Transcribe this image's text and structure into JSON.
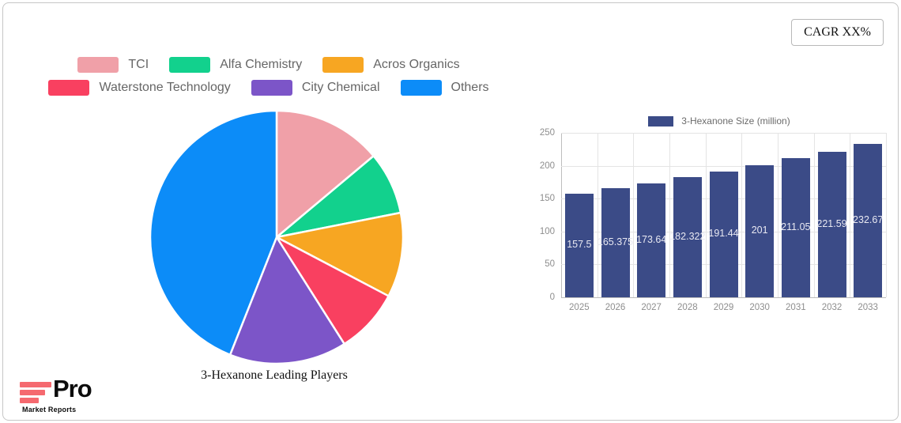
{
  "cagr_badge": {
    "label": "CAGR XX%"
  },
  "logo": {
    "text": "Pro",
    "subtitle": "Market Reports",
    "bar_color": "#f5696f"
  },
  "colors": {
    "bar_fill": "#3b4b87",
    "grid": "#e4e4e4",
    "axis": "#bdbdbd",
    "legend_text": "#666666",
    "tick_text": "#8e8e8e"
  },
  "chart_data": [
    {
      "type": "pie",
      "title": "3-Hexanone Leading Players",
      "labels": [
        "TCI",
        "Alfa Chemistry",
        "Acros Organics",
        "Waterstone Technology",
        "City Chemical",
        "Others"
      ],
      "values_percent": [
        13.9,
        8.0,
        10.8,
        8.3,
        15.0,
        44.0
      ],
      "colors": [
        "#f0a0a8",
        "#12d18d",
        "#f7a622",
        "#f94060",
        "#7c55c8",
        "#0c8cf8"
      ],
      "start_angle_deg": 0,
      "direction": "clockwise",
      "legend_position": "top",
      "legend_rows": [
        [
          0,
          1,
          2
        ],
        [
          3,
          4,
          5
        ]
      ]
    },
    {
      "type": "bar",
      "series_label": "3-Hexanone Size (million)",
      "categories": [
        "2025",
        "2026",
        "2027",
        "2028",
        "2029",
        "2030",
        "2031",
        "2032",
        "2033"
      ],
      "values": [
        157.5,
        165.375,
        173.64,
        182.322,
        191.44,
        201,
        211.05,
        221.59,
        232.67
      ],
      "value_labels": [
        "157.5",
        "165.375",
        "173.64",
        "182.322",
        "191.44",
        "201",
        "211.05",
        "221.59",
        "232.67"
      ],
      "bar_color": "#3b4b87",
      "ylim": [
        0,
        250
      ],
      "yticks": [
        0,
        50,
        100,
        150,
        200,
        250
      ],
      "grid": true,
      "legend_position": "top"
    }
  ]
}
